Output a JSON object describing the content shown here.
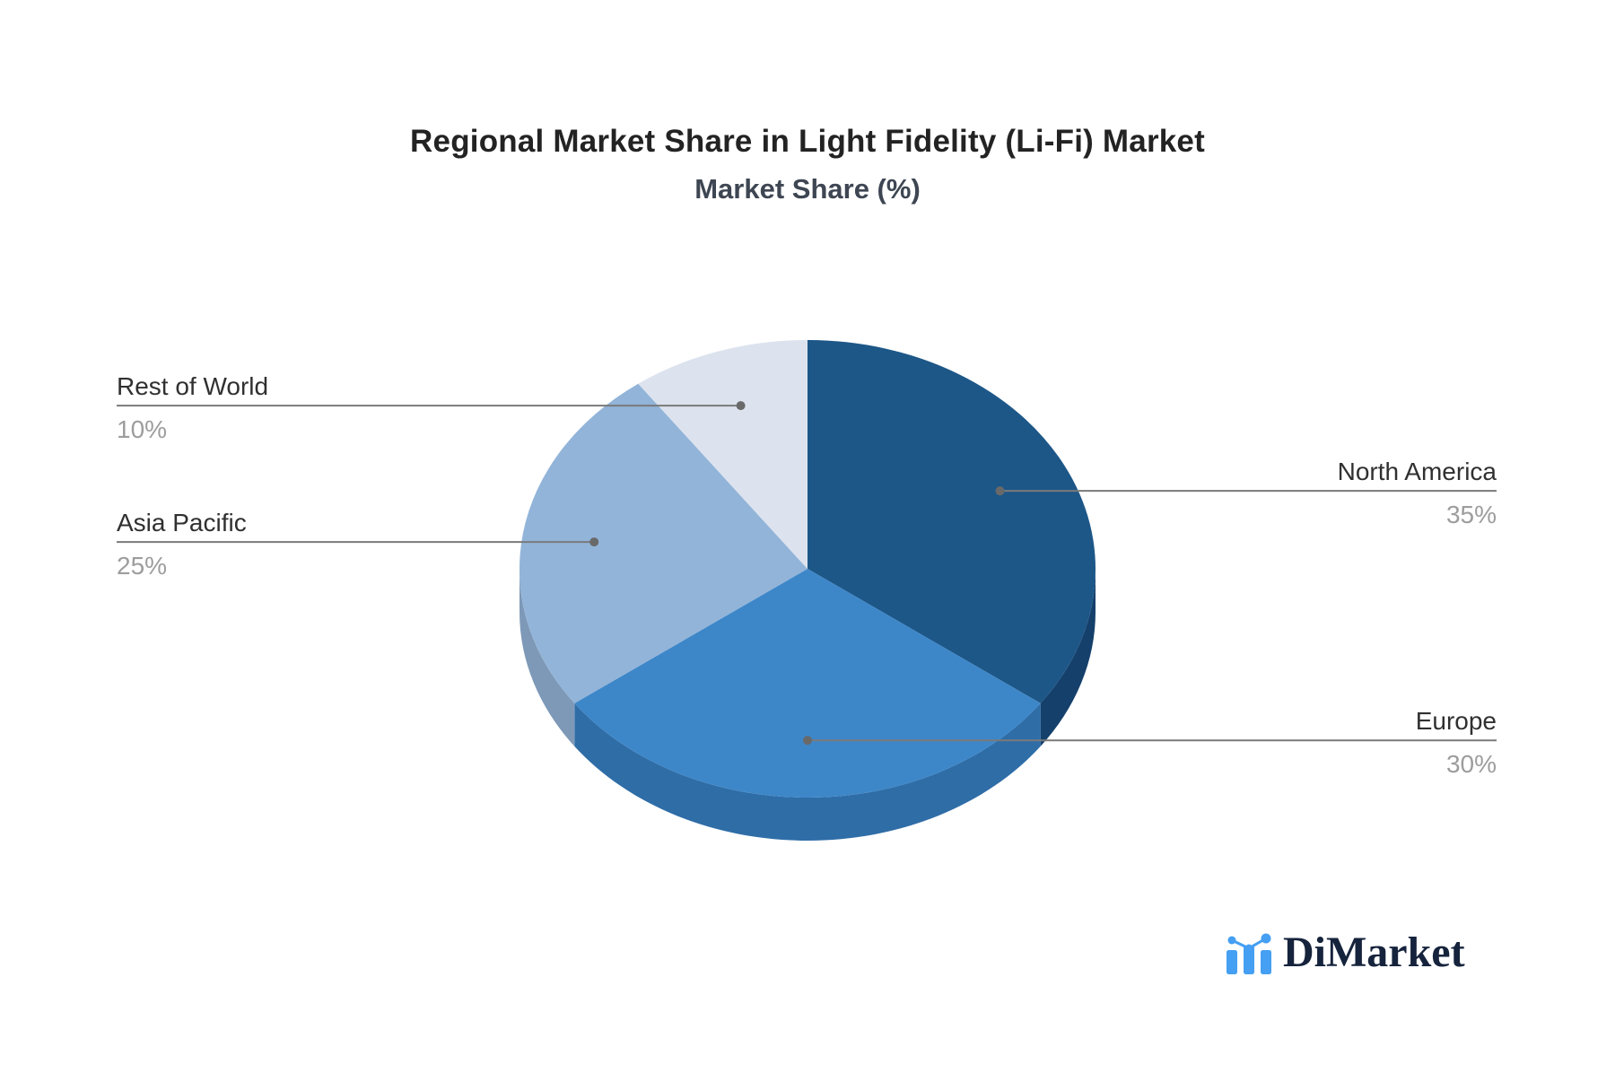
{
  "title": "Regional Market Share in Light Fidelity (Li-Fi) Market",
  "subtitle": "Market Share (%)",
  "logo": {
    "text": "DiMarket",
    "icon": "bar-line-chart-icon",
    "icon_color": "#459ff2",
    "text_color": "#16233c"
  },
  "chart_data": {
    "type": "pie",
    "title": "Regional Market Share in Light Fidelity (Li-Fi) Market",
    "subtitle": "Market Share (%)",
    "unit": "%",
    "effect_3d": true,
    "start_angle_deg": -90,
    "direction": "clockwise",
    "legend": "none",
    "labels_style": "callout-leader-lines",
    "slices": [
      {
        "label": "North America",
        "value": 35,
        "display": "35%",
        "color": "#1d5788",
        "side_color": "#15406b",
        "callout_side": "right"
      },
      {
        "label": "Europe",
        "value": 30,
        "display": "30%",
        "color": "#3d87c9",
        "side_color": "#2f6da7",
        "callout_side": "right"
      },
      {
        "label": "Asia Pacific",
        "value": 25,
        "display": "25%",
        "color": "#92b4d9",
        "side_color": "#7e99b8",
        "callout_side": "left"
      },
      {
        "label": "Rest of World",
        "value": 10,
        "display": "10%",
        "color": "#dce3ee",
        "side_color": "#b9c6d8",
        "callout_side": "left"
      }
    ],
    "colors": {
      "leader_line": "#7a7a7a",
      "callout_dot": "#696969",
      "label_name": "#303030",
      "label_value": "#9d9d9d",
      "background": "#ffffff"
    }
  }
}
